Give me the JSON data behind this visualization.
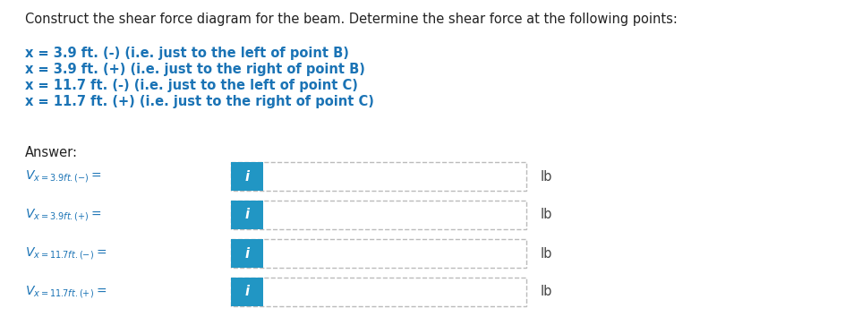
{
  "title": "Construct the shear force diagram for the beam. Determine the shear force at the following points:",
  "bullet_lines": [
    "x = 3.9 ft. (-) (i.e. just to the left of point B)",
    "x = 3.9 ft. (+) (i.e. just to the right of point B)",
    "x = 11.7 ft. (-) (i.e. just to the left of point C)",
    "x = 11.7 ft. (+) (i.e. just to the right of point C)"
  ],
  "answer_label": "Answer:",
  "row_labels_math": [
    "V_{x=3.9ft.(-)} = ",
    "V_{x=3.9ft.(+)} = ",
    "V_{x=11.7ft.(-)} = ",
    "V_{x=11.7ft.(+)} = "
  ],
  "units": [
    "lb",
    "lb",
    "lb",
    "lb"
  ],
  "background_color": "#ffffff",
  "title_color": "#222222",
  "bullet_color": "#1a73b5",
  "answer_color": "#222222",
  "label_color": "#1a73b5",
  "box_border_color": "#bbbbbb",
  "box_fill_color": "#ffffff",
  "blue_button_color": "#2196c4",
  "blue_button_text": "i",
  "blue_button_text_color": "#ffffff",
  "unit_color": "#444444",
  "title_fontsize": 10.5,
  "bullet_fontsize": 10.5,
  "answer_fontsize": 10.5,
  "label_fontsize": 10.0,
  "btn_text_fontsize": 10.5,
  "unit_fontsize": 10.5
}
